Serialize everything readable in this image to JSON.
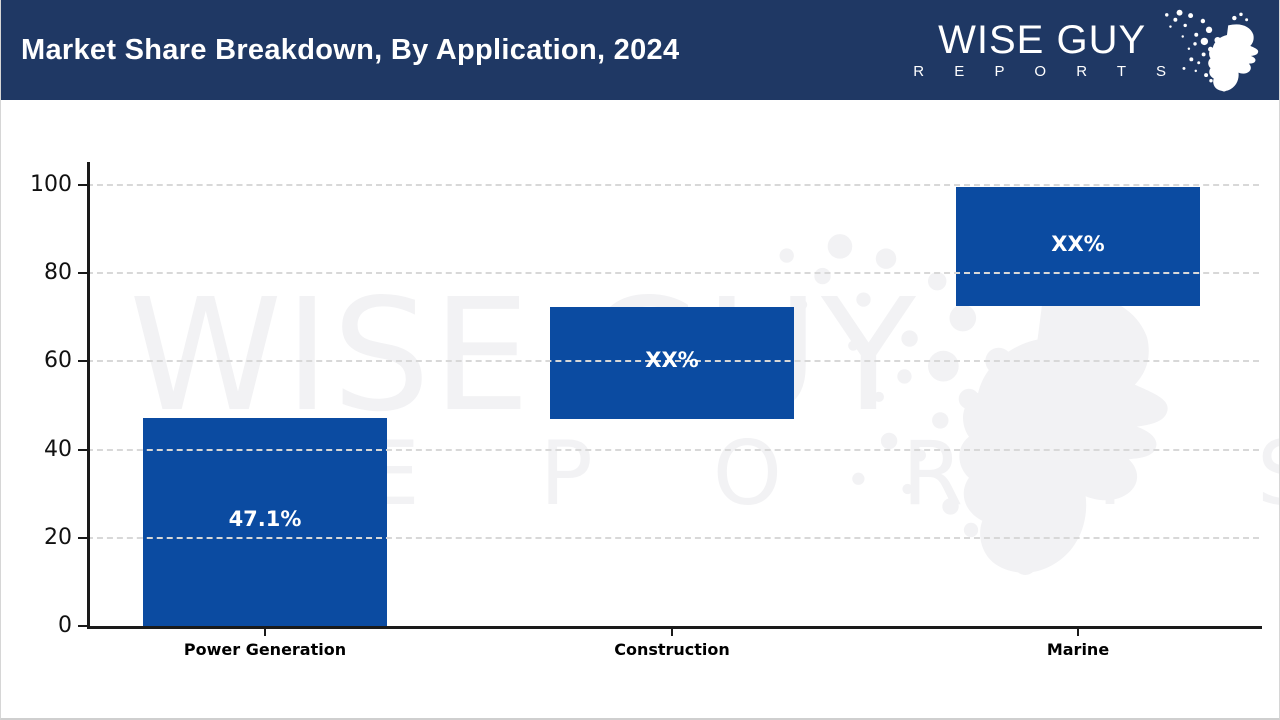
{
  "header": {
    "bg_color": "#1f3864",
    "title": "Market Share Breakdown, By Application, 2024",
    "logo": {
      "line1": "WISE GUY",
      "line2": "R E P O R T S"
    }
  },
  "watermark": {
    "line1": "WISE GUY",
    "line2": "R E P O R T S"
  },
  "chart_data": {
    "type": "bar",
    "subtype": "waterfall",
    "title": "Market Share Breakdown, By Application, 2024",
    "categories": [
      "Power Generation",
      "Construction",
      "Marine"
    ],
    "series": [
      {
        "name": "Market Share",
        "segments": [
          {
            "category": "Power Generation",
            "start": 0,
            "end": 47.1,
            "label": "47.1%"
          },
          {
            "category": "Construction",
            "start": 47.0,
            "end": 72.3,
            "label": "XX%"
          },
          {
            "category": "Marine",
            "start": 72.6,
            "end": 99.5,
            "label": "XX%"
          }
        ]
      }
    ],
    "xlabel": "",
    "ylabel": "",
    "yticks": [
      0,
      20,
      40,
      60,
      80,
      100
    ],
    "ylim": [
      0,
      105
    ],
    "grid": "dashed-horizontal",
    "legend": "none",
    "bar_color": "#0b4ba1",
    "grid_color": "#d8d8d8",
    "axis_color": "#1a1a1a",
    "value_label_color": "#ffffff"
  }
}
